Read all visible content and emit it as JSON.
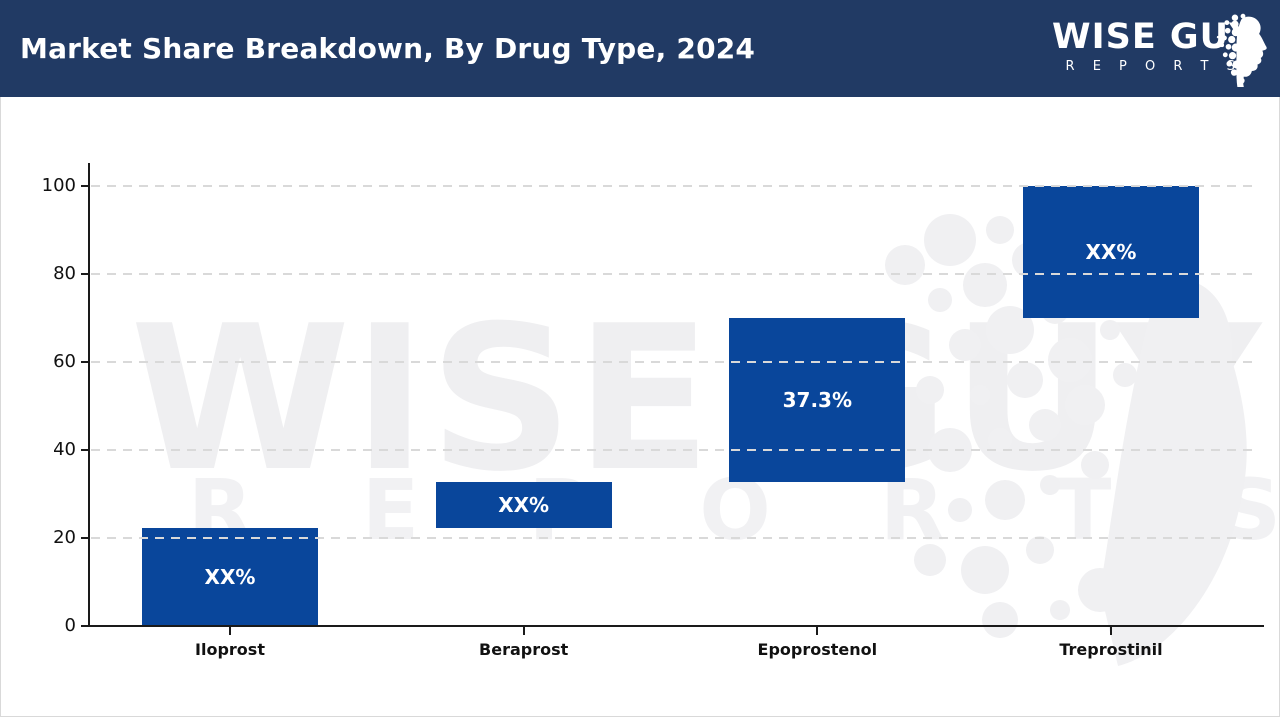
{
  "header": {
    "title": "Market Share Breakdown, By Drug Type, 2024",
    "logo": {
      "brand_line1": "WISE GUY",
      "brand_line2": "R E P O R T S"
    }
  },
  "watermark": {
    "line1": "WISE GUY",
    "line2": "R E P O R T S"
  },
  "chart_data": {
    "type": "bar",
    "subtype": "floating-waterfall",
    "title": "Market Share Breakdown, By Drug Type, 2024",
    "categories": [
      "Iloprost",
      "Beraprost",
      "Epoprostenol",
      "Treprostinil"
    ],
    "segments": [
      {
        "category": "Iloprost",
        "start": 0,
        "end": 22.3,
        "label": "XX%"
      },
      {
        "category": "Beraprost",
        "start": 22.3,
        "end": 32.7,
        "label": "XX%"
      },
      {
        "category": "Epoprostenol",
        "start": 32.7,
        "end": 70,
        "label": "37.3%"
      },
      {
        "category": "Treprostinil",
        "start": 70,
        "end": 100,
        "label": "XX%"
      }
    ],
    "yticks": [
      0,
      20,
      40,
      60,
      80,
      100
    ],
    "ylim": [
      0,
      105
    ],
    "xlabel": "",
    "ylabel": "",
    "grid": "dashed-horizontal",
    "legend": "none",
    "bar_color": "#09469b",
    "value_label_color": "#ffffff"
  },
  "colors": {
    "header_bg": "#213a64",
    "bar": "#09469b",
    "gridline": "#d9d9d9",
    "axis": "#1a1a1a",
    "watermark": "#efeff1"
  }
}
